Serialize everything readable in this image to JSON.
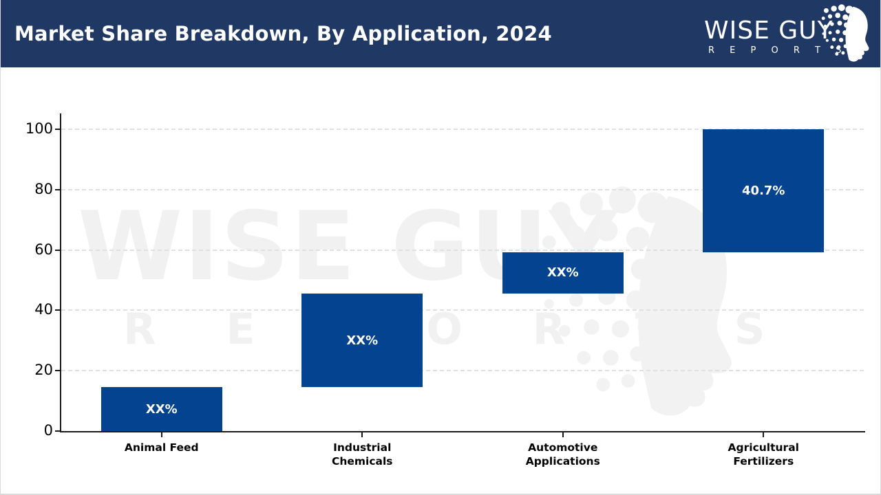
{
  "header": {
    "title": "Market Share Breakdown, By Application, 2024",
    "background_color": "#203864",
    "logo": {
      "line1": "WISE GUY",
      "line2": "R E P O R T S"
    }
  },
  "watermark": {
    "line1": "WISE GUY",
    "line2": "R E P O R T S"
  },
  "chart_data": {
    "type": "bar",
    "subtype": "waterfall",
    "title": "Market Share Breakdown, By Application, 2024",
    "xlabel": "",
    "ylabel": "",
    "ylim": [
      0,
      105
    ],
    "yticks": [
      0,
      20,
      40,
      60,
      80,
      100
    ],
    "grid": "horizontal-dashed",
    "legend": "none",
    "bar_color": "#04438F",
    "value_label_color": "#ffffff",
    "categories": [
      "Animal Feed",
      "Industrial Chemicals",
      "Automotive Applications",
      "Agricultural Fertilizers"
    ],
    "category_display_lines": [
      [
        "Animal Feed"
      ],
      [
        "Industrial",
        "Chemicals"
      ],
      [
        "Automotive",
        "Applications"
      ],
      [
        "Agricultural",
        "Fertilizers"
      ]
    ],
    "segments": [
      {
        "category": "Animal Feed",
        "start": 0,
        "end": 14.5,
        "label": "XX%"
      },
      {
        "category": "Industrial Chemicals",
        "start": 14.5,
        "end": 45.5,
        "label": "XX%"
      },
      {
        "category": "Automotive Applications",
        "start": 45.5,
        "end": 59.3,
        "label": "XX%"
      },
      {
        "category": "Agricultural Fertilizers",
        "start": 59.3,
        "end": 100,
        "label": "40.7%"
      }
    ]
  }
}
